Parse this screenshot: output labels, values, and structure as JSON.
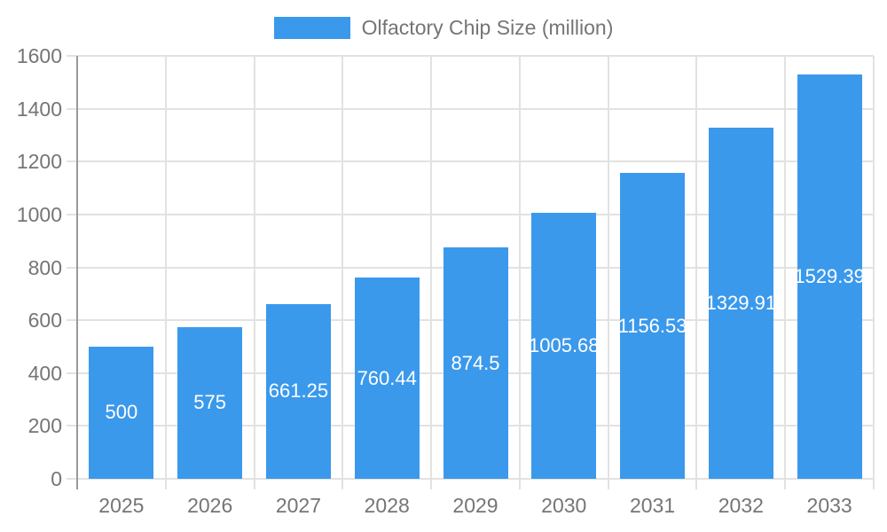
{
  "chart_data": {
    "type": "bar",
    "title": "Olfactory Chip Size (million)",
    "categories": [
      "2025",
      "2026",
      "2027",
      "2028",
      "2029",
      "2030",
      "2031",
      "2032",
      "2033"
    ],
    "series": [
      {
        "name": "Olfactory Chip Size (million)",
        "values": [
          500,
          575,
          661.25,
          760.44,
          874.5,
          1005.68,
          1156.53,
          1329.91,
          1529.39
        ],
        "labels": [
          "500",
          "575",
          "661.25",
          "760.44",
          "874.5",
          "1005.68",
          "1156.53",
          "1329.91",
          "1529.39"
        ]
      }
    ],
    "xlabel": "",
    "ylabel": "",
    "ylim": [
      0,
      1600
    ],
    "yticks": [
      0,
      200,
      400,
      600,
      800,
      1000,
      1200,
      1400,
      1600
    ],
    "grid": true,
    "legend_position": "top-center",
    "bar_value_labels": "inside-center",
    "colors": {
      "bar": "#3B99EC",
      "grid": "#E2E2E2",
      "axis": "#9A9A9A",
      "text": "#757575",
      "bar_label": "#FFFFFF",
      "background": "#FFFFFF"
    }
  }
}
